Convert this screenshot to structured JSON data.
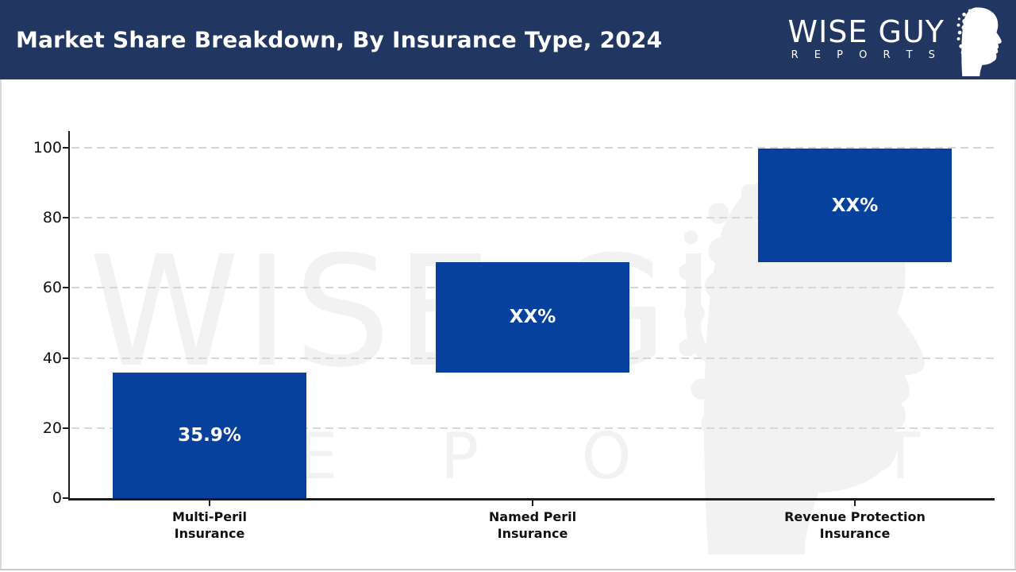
{
  "header": {
    "title": "Market Share Breakdown, By Insurance Type, 2024",
    "brand": {
      "name": "WISE GUY",
      "sub": "R E P O R T S"
    }
  },
  "watermark": {
    "line1": "WISE GUY",
    "line2": "R E P O R T S"
  },
  "colors": {
    "header_bg": "#213660",
    "bar": "#07419e",
    "bar_label_text": "#ffffff",
    "grid_line": "#d7d7d7",
    "axis": "#1c1c1c",
    "watermark": "#f2f2f3"
  },
  "chart_data": {
    "type": "bar",
    "variant": "waterfall",
    "title": "Market Share Breakdown, By Insurance Type, 2024",
    "xlabel": "",
    "ylabel": "",
    "categories": [
      "Multi-Peril Insurance",
      "Named Peril Insurance",
      "Revenue Protection Insurance"
    ],
    "category_lines": [
      [
        "Multi-Peril",
        "Insurance"
      ],
      [
        "Named Peril",
        "Insurance"
      ],
      [
        "Revenue Protection",
        "Insurance"
      ]
    ],
    "segments": [
      {
        "category": "Multi-Peril Insurance",
        "start": 0,
        "end": 35.9,
        "label": "35.9%"
      },
      {
        "category": "Named Peril Insurance",
        "start": 35.9,
        "end": 67.3,
        "label": "XX%"
      },
      {
        "category": "Revenue Protection Insurance",
        "start": 67.3,
        "end": 99.8,
        "label": "XX%"
      }
    ],
    "yticks": [
      0,
      20,
      40,
      60,
      80,
      100
    ],
    "ylim": [
      0,
      105
    ],
    "grid": "horizontal-dashed",
    "legend": "none"
  }
}
